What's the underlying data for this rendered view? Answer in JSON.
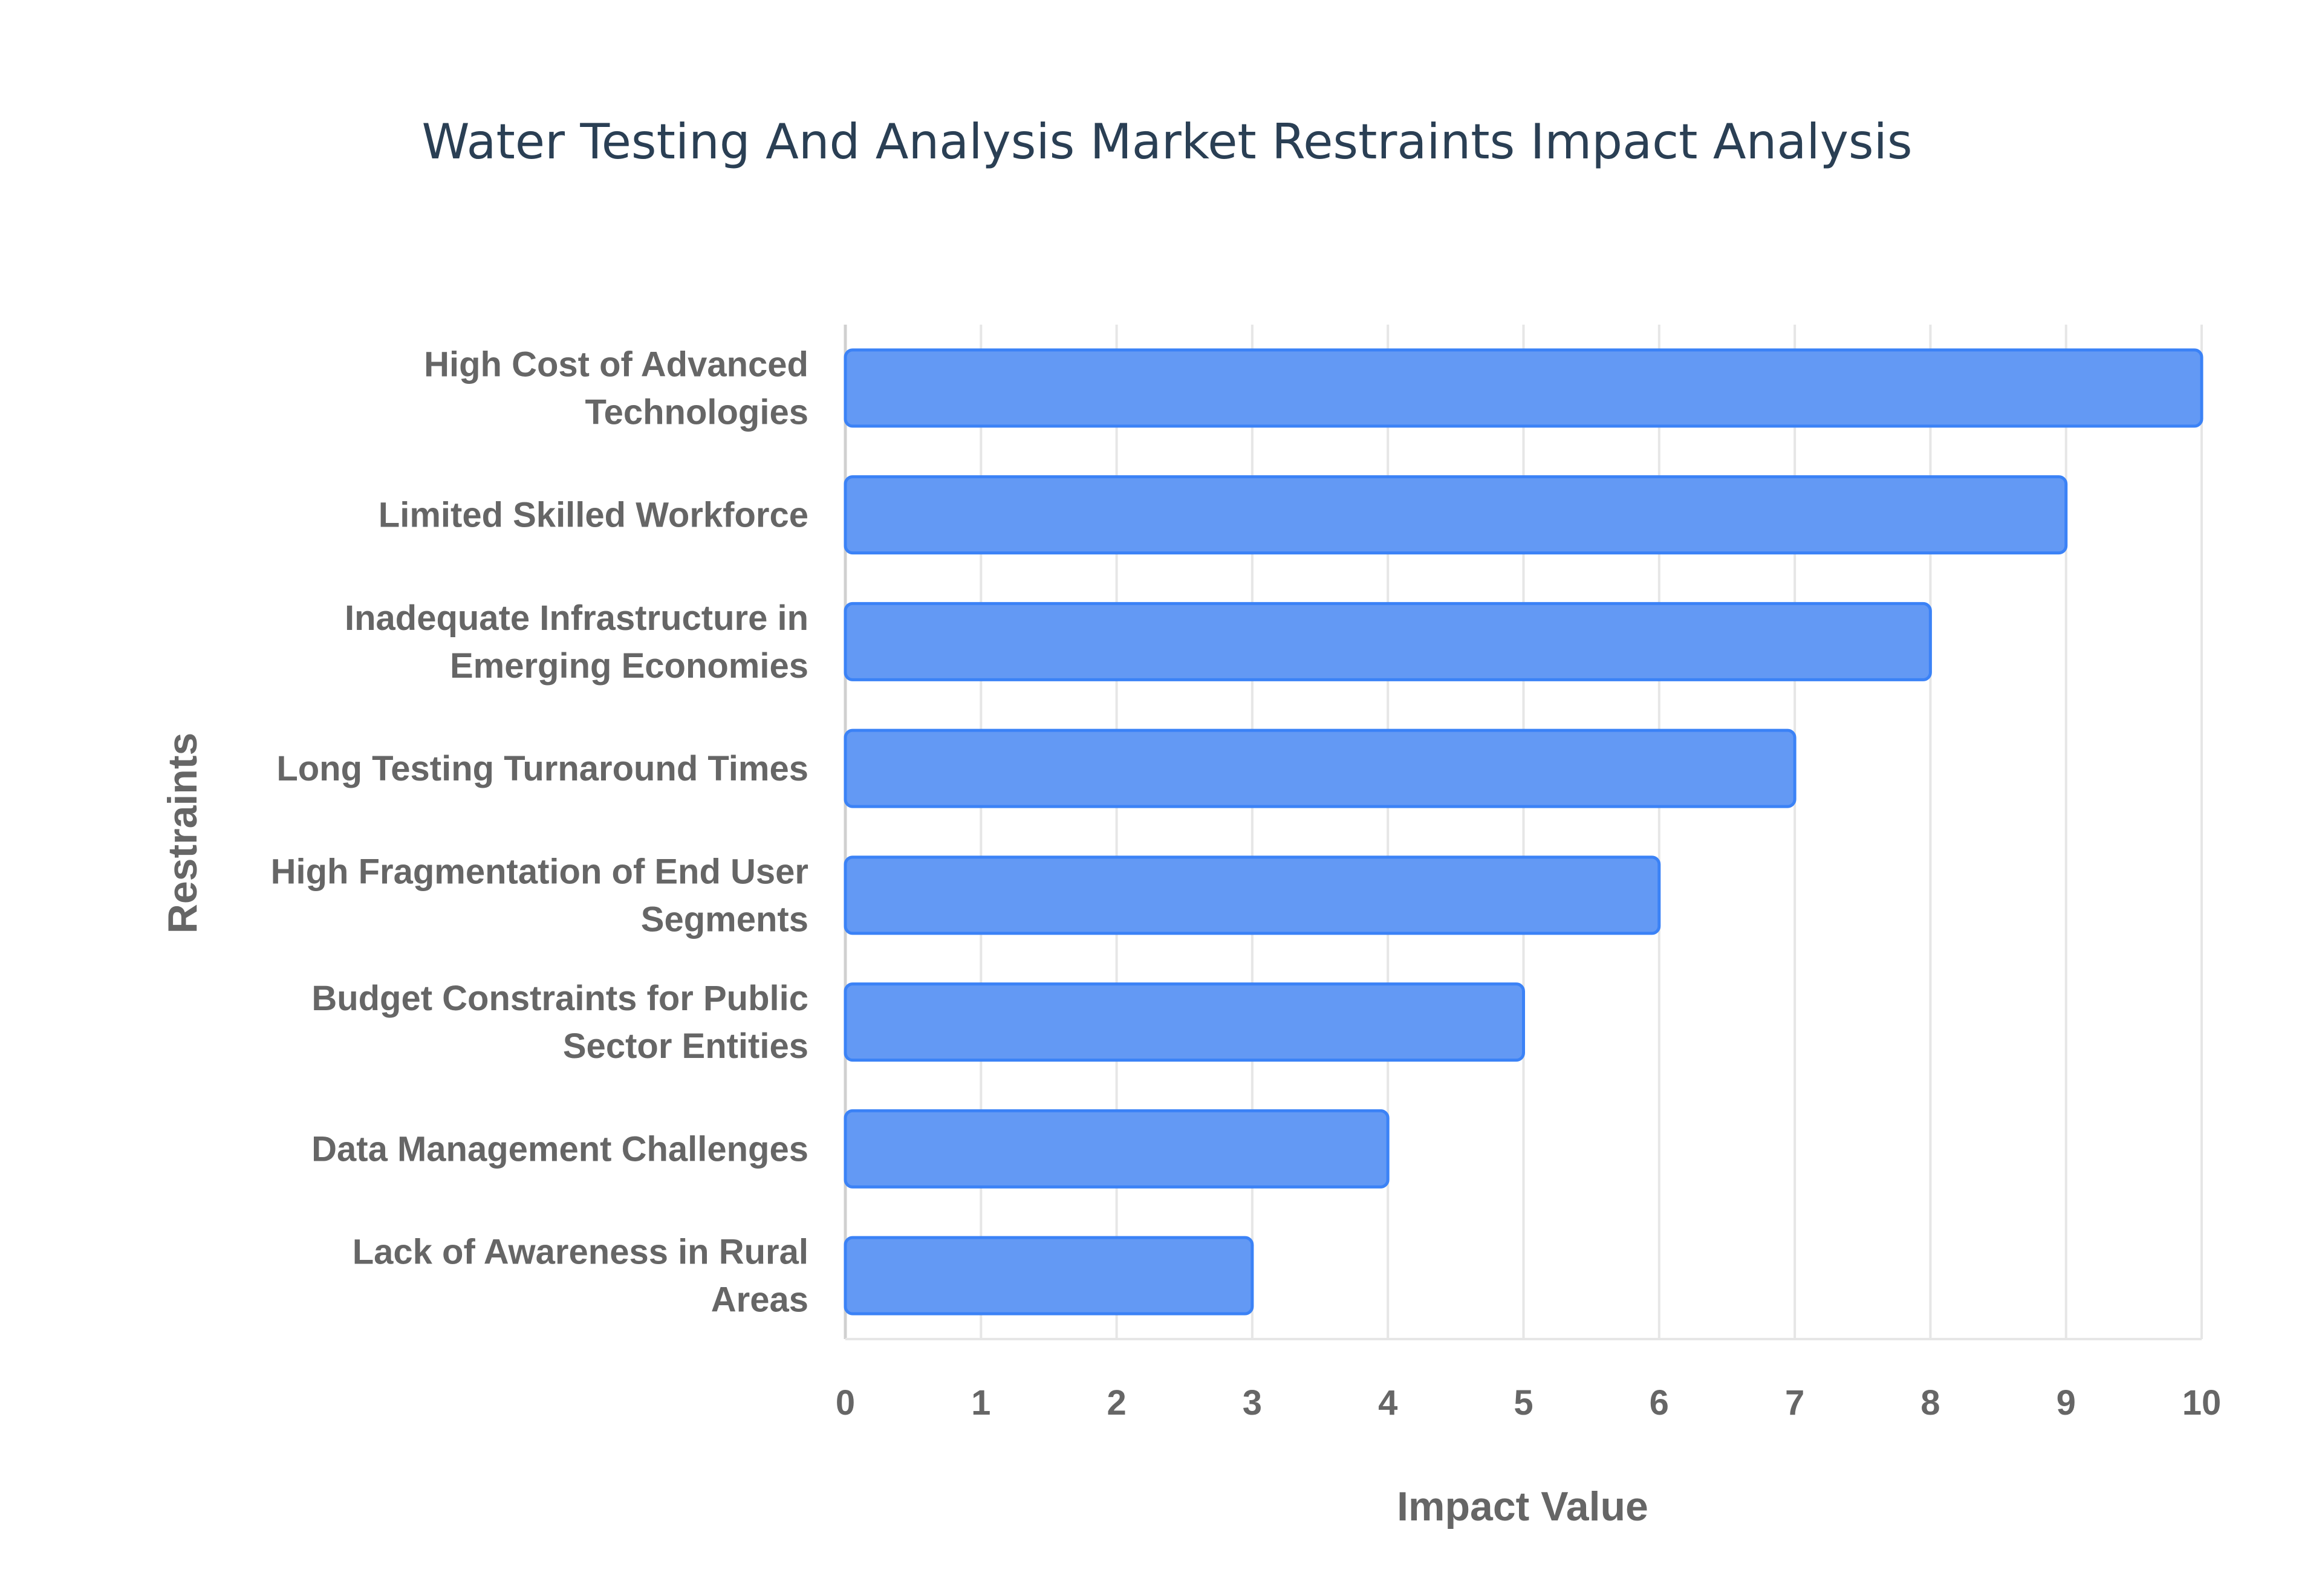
{
  "chart_data": {
    "type": "bar",
    "orientation": "horizontal",
    "title": "Water Testing And Analysis Market Restraints Impact Analysis",
    "xlabel": "Impact Value",
    "ylabel": "Restraints",
    "xlim": [
      0,
      10
    ],
    "xticks": [
      "0",
      "1",
      "2",
      "3",
      "4",
      "5",
      "6",
      "7",
      "8",
      "9",
      "10"
    ],
    "grid": true,
    "categories": [
      [
        "High Cost of Advanced",
        "Technologies"
      ],
      [
        "Limited Skilled Workforce"
      ],
      [
        "Inadequate Infrastructure in",
        "Emerging Economies"
      ],
      [
        "Long Testing Turnaround Times"
      ],
      [
        "High Fragmentation of End User",
        "Segments"
      ],
      [
        "Budget Constraints for Public",
        "Sector Entities"
      ],
      [
        "Data Management Challenges"
      ],
      [
        "Lack of Awareness in Rural",
        "Areas"
      ]
    ],
    "values": [
      10,
      9,
      8,
      7,
      6,
      5,
      4,
      3
    ],
    "colors": {
      "bar_fill": "#6399f4",
      "bar_border": "#3b82f6",
      "grid": "#e6e6e6",
      "title": "#2a3f54",
      "text": "#666666"
    }
  }
}
